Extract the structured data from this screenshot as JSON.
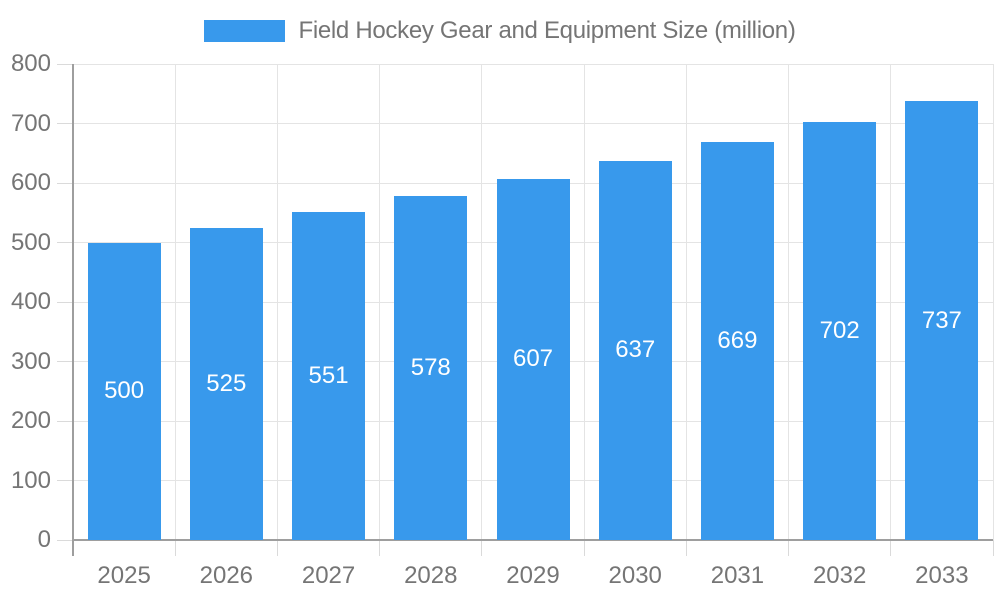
{
  "legend": {
    "label": "Field Hockey Gear and Equipment Size (million)"
  },
  "colors": {
    "bar": "#3899EC",
    "bar_label": "#FFFFFF",
    "axis_label": "#757575",
    "grid": "#E4E4E4",
    "tick": "#DADADA",
    "axis_line": "#9E9E9E",
    "background": "#FFFFFF"
  },
  "chart_data": {
    "type": "bar",
    "title": "Field Hockey Gear and Equipment Size (million)",
    "categories": [
      "2025",
      "2026",
      "2027",
      "2028",
      "2029",
      "2030",
      "2031",
      "2032",
      "2033"
    ],
    "values": [
      500,
      525,
      551,
      578,
      607,
      637,
      669,
      702,
      737
    ],
    "xlabel": "",
    "ylabel": "",
    "ylim": [
      0,
      800
    ],
    "yticks": [
      0,
      100,
      200,
      300,
      400,
      500,
      600,
      700,
      800
    ],
    "grid": true,
    "legend_position": "top",
    "value_labels": "inside-center"
  }
}
